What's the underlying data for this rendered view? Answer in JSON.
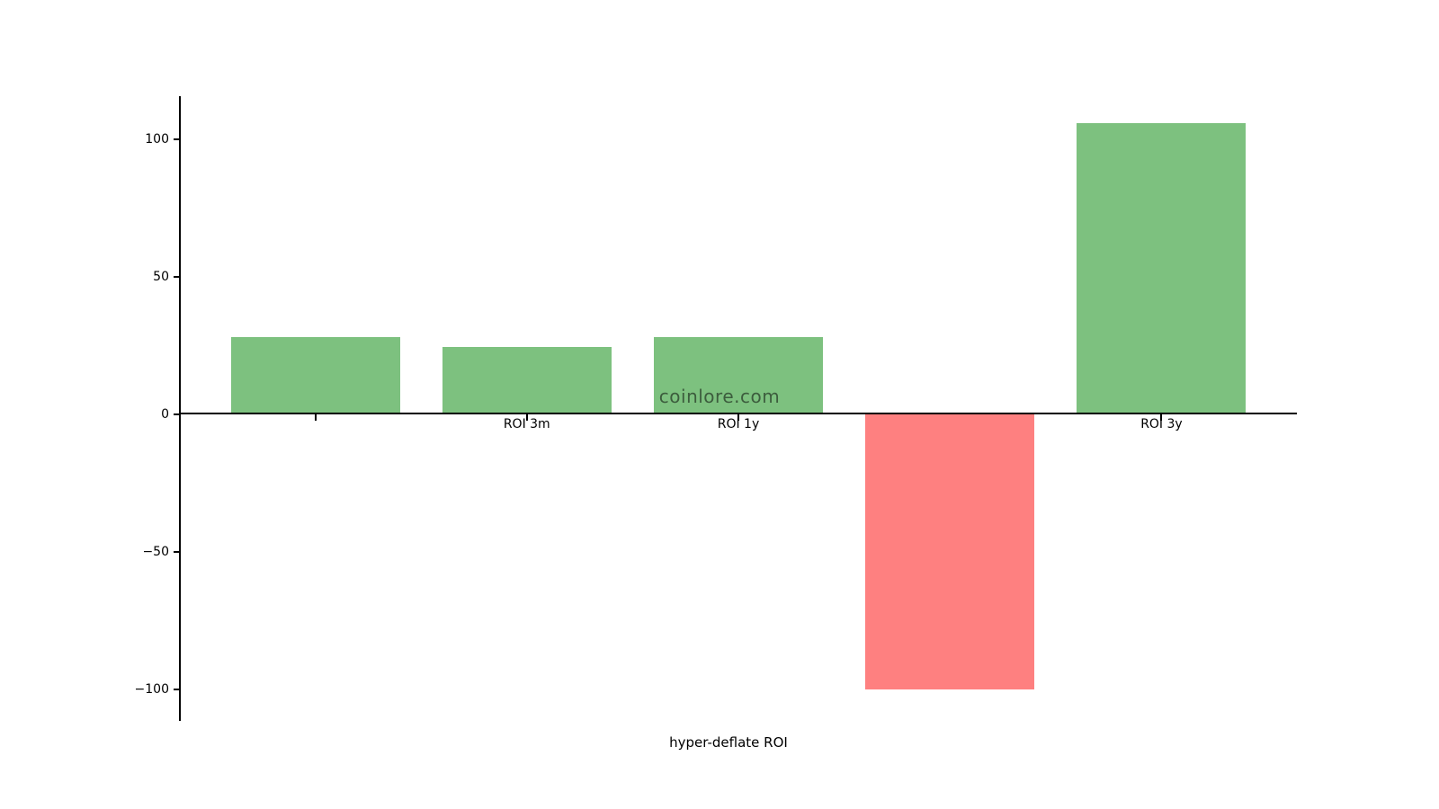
{
  "watermark": "coinlore.com",
  "chart_data": {
    "type": "bar",
    "title": "",
    "xlabel": "hyper-deflate ROI",
    "ylabel": "",
    "categories": [
      "",
      "ROI 3m",
      "ROI 1y",
      "",
      "ROI 3y"
    ],
    "values": [
      28,
      24.5,
      28,
      -100,
      106
    ],
    "bar_colors": [
      "#7dc17f",
      "#7dc17f",
      "#7dc17f",
      "#fe8080",
      "#7dc17f"
    ],
    "positive_color": "#7dc17f",
    "negative_color": "#fe8080",
    "yticks": [
      100,
      50,
      0,
      -50,
      -100
    ],
    "ytick_labels": [
      "100",
      "50",
      "0",
      "−50",
      "−100"
    ],
    "ylim": [
      -110,
      116
    ],
    "grid": false,
    "legend": false
  }
}
